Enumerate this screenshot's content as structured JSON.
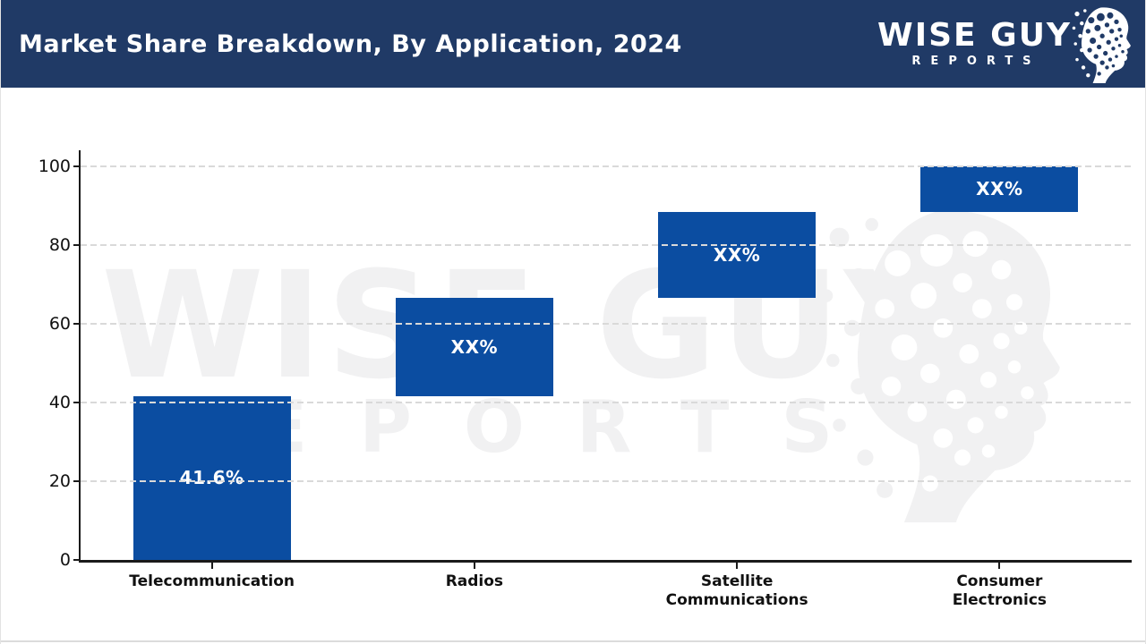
{
  "header": {
    "title": "Market Share Breakdown, By Application, 2024",
    "background": "#203a66",
    "logo": {
      "line1": "WISE GUY",
      "line2": "REPORTS"
    }
  },
  "watermark": {
    "line1": "WISE GUY",
    "line2": "REPORTS"
  },
  "chart_data": {
    "type": "bar",
    "subtype": "waterfall",
    "title": "Market Share Breakdown, By Application, 2024",
    "categories": [
      "Telecommunication",
      "Radios",
      "Satellite Communications",
      "Consumer Electronics"
    ],
    "category_lines": [
      [
        "Telecommunication"
      ],
      [
        "Radios"
      ],
      [
        "Satellite",
        "Communications"
      ],
      [
        "Consumer",
        "Electronics"
      ]
    ],
    "segments": [
      {
        "category": "Telecommunication",
        "start": 0,
        "end": 41.6,
        "label": "41.6%"
      },
      {
        "category": "Radios",
        "start": 41.6,
        "end": 66.5,
        "label": "XX%"
      },
      {
        "category": "Satellite Communications",
        "start": 66.5,
        "end": 88.5,
        "label": "XX%"
      },
      {
        "category": "Consumer Electronics",
        "start": 88.5,
        "end": 100,
        "label": "XX%"
      }
    ],
    "xlabel": "",
    "ylabel": "",
    "ylim": [
      0,
      100
    ],
    "yticks": [
      0,
      20,
      40,
      60,
      80,
      100
    ],
    "grid": "horizontal-dashed, drawn over bars",
    "legend": "none",
    "bar_color": "#0b4da1",
    "bar_label_color": "#ffffff"
  },
  "colors": {
    "header_bg": "#203a66",
    "bar": "#0b4da1",
    "axis": "#1a1a1a",
    "gridline": "#d9d9d9",
    "watermark": "#f1f1f2",
    "footer_rule": "#dcdcdc"
  }
}
